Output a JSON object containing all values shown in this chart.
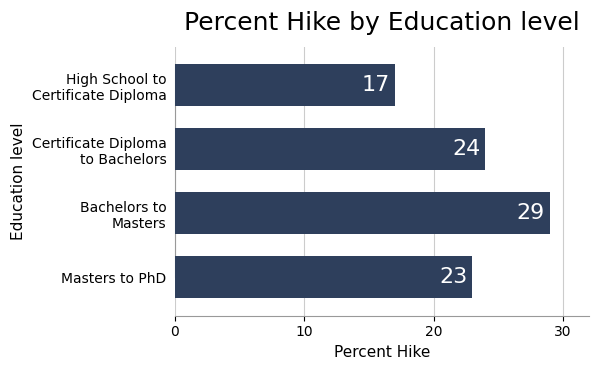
{
  "title": "Percent Hike by Education level",
  "xlabel": "Percent Hike",
  "ylabel": "Education level",
  "categories": [
    "Masters to PhD",
    "Bachelors to\nMasters",
    "Certificate Diploma\nto Bachelors",
    "High School to\nCertificate Diploma"
  ],
  "values": [
    23,
    29,
    24,
    17
  ],
  "bar_color": "#2e3f5c",
  "label_color": "#ffffff",
  "label_fontsize": 16,
  "title_fontsize": 18,
  "axis_label_fontsize": 11,
  "tick_fontsize": 10,
  "xlim": [
    0,
    32
  ],
  "xticks": [
    0,
    10,
    20,
    30
  ],
  "background_color": "#ffffff",
  "grid_color": "#cccccc",
  "bar_height": 0.65
}
